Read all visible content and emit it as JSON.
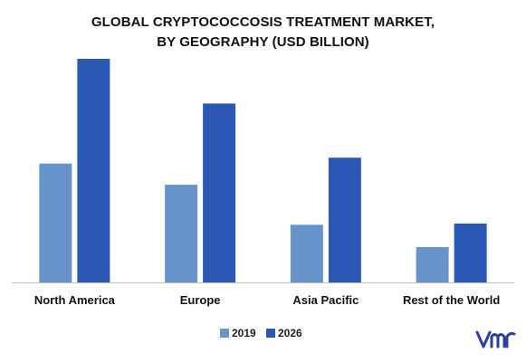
{
  "chart_data": {
    "type": "bar",
    "title": "GLOBAL CRYPTOCOCCOSIS TREATMENT MARKET, BY GEOGRAPHY (USD BILLION)",
    "title_lines": [
      "GLOBAL CRYPTOCOCCOSIS TREATMENT MARKET,",
      "BY GEOGRAPHY (USD BILLION)"
    ],
    "categories": [
      "North America",
      "Europe",
      "Asia Pacific",
      "Rest of the World"
    ],
    "series": [
      {
        "name": "2019",
        "color": "#6794CB",
        "values": [
          0.505,
          0.415,
          0.245,
          0.15
        ]
      },
      {
        "name": "2026",
        "color": "#2B58B4",
        "values": [
          0.95,
          0.76,
          0.53,
          0.25
        ]
      }
    ],
    "ylim": [
      0,
      1
    ],
    "grid": false,
    "legend_position": "bottom-center",
    "xlabel": "",
    "ylabel": ""
  },
  "logo": {
    "icon": "vmr-logo-icon",
    "color": "#2B3F9E"
  }
}
